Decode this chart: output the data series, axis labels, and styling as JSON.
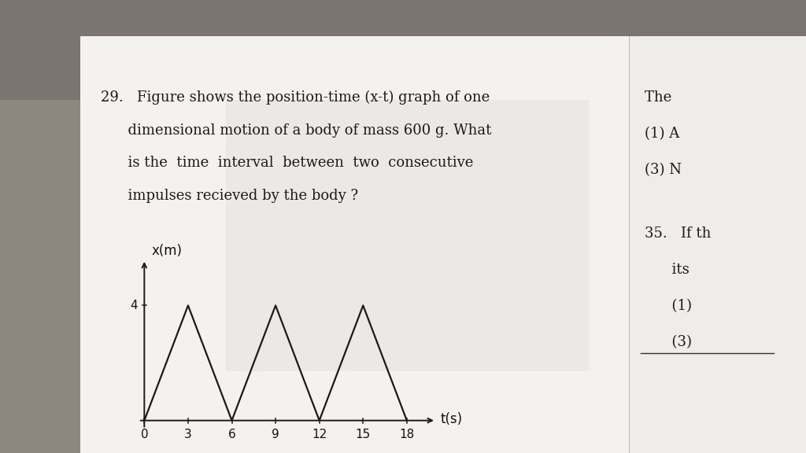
{
  "x_data": [
    0,
    3,
    6,
    9,
    12,
    15,
    18
  ],
  "y_data": [
    0,
    4,
    0,
    4,
    0,
    4,
    0
  ],
  "xlabel": "t(s)",
  "ylabel": "x(m)",
  "xticks": [
    0,
    3,
    6,
    9,
    12,
    15,
    18
  ],
  "ytick_val": 4,
  "xlim": [
    -0.5,
    20.5
  ],
  "ylim": [
    -0.5,
    5.8
  ],
  "line_color": "#1a1a1a",
  "line_width": 1.6,
  "bg_stone_color": "#9a9590",
  "paper_color": "#f2f0ee",
  "text_color": "#1a1a1a",
  "question_text_line1": "29.   Figure shows the position-time (x-t) graph of one",
  "question_text_line2": "      dimensional motion of a body of mass 600 g. What",
  "question_text_line3": "      is the  time  interval  between  two  consecutive",
  "question_text_line4": "      impulses recieved by the body ?",
  "right_text_1": "The ",
  "right_text_2": "(1) A",
  "right_text_3": "(3) N",
  "right_text_4": "35.   If th",
  "right_text_5": "      its",
  "right_text_6": "      (1)",
  "right_text_7": "      (3)",
  "axis_label_fontsize": 12,
  "tick_fontsize": 11,
  "question_fontsize": 13
}
